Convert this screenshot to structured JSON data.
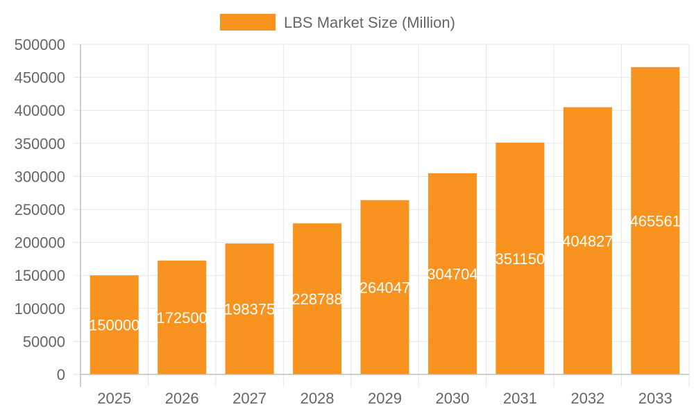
{
  "chart_data": {
    "type": "bar",
    "categories": [
      "2025",
      "2026",
      "2027",
      "2028",
      "2029",
      "2030",
      "2031",
      "2032",
      "2033"
    ],
    "series": [
      {
        "name": "LBS Market Size (Million)",
        "values": [
          150000,
          172500,
          198375,
          228788,
          264047,
          304704,
          351150,
          404827,
          465561
        ]
      }
    ],
    "data_labels": [
      "150000",
      "172500",
      "198375",
      "228788",
      "264047",
      "304704",
      "351150",
      "404827",
      "465561"
    ],
    "y_ticks": [
      "0",
      "50000",
      "100000",
      "150000",
      "200000",
      "250000",
      "300000",
      "350000",
      "400000",
      "450000",
      "500000"
    ],
    "ylim": [
      0,
      500000
    ],
    "grid": true,
    "legend": "top-center",
    "colors": {
      "bar": "#F7931E",
      "grid": "#e6e6e6",
      "axis": "#bdbdbd",
      "text": "#666666",
      "data_label": "#ffffff"
    }
  }
}
